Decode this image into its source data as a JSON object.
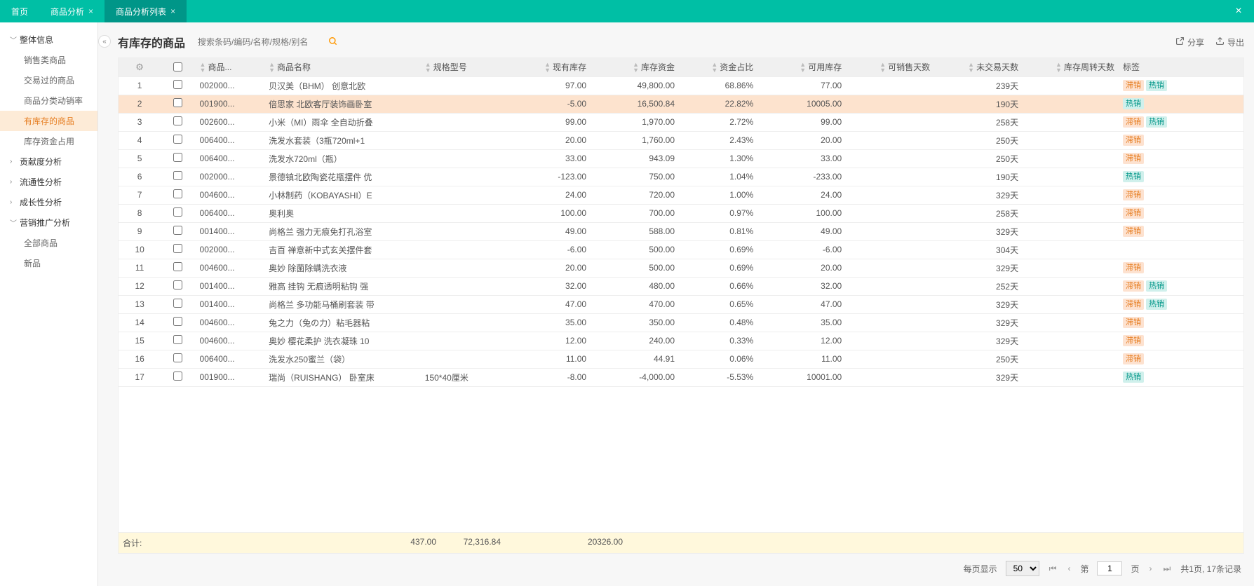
{
  "tabs": [
    {
      "label": "首页",
      "closable": false,
      "active": false
    },
    {
      "label": "商品分析",
      "closable": true,
      "active": false
    },
    {
      "label": "商品分析列表",
      "closable": true,
      "active": true
    }
  ],
  "sidebar": {
    "groups": [
      {
        "label": "整体信息",
        "expanded": true,
        "items": [
          {
            "label": "销售类商品",
            "active": false
          },
          {
            "label": "交易过的商品",
            "active": false
          },
          {
            "label": "商品分类动销率",
            "active": false
          },
          {
            "label": "有库存的商品",
            "active": true
          },
          {
            "label": "库存资金占用",
            "active": false
          }
        ]
      },
      {
        "label": "贡献度分析",
        "expanded": false,
        "items": []
      },
      {
        "label": "流通性分析",
        "expanded": false,
        "items": []
      },
      {
        "label": "成长性分析",
        "expanded": false,
        "items": []
      },
      {
        "label": "营销推广分析",
        "expanded": true,
        "items": [
          {
            "label": "全部商品",
            "active": false
          },
          {
            "label": "新品",
            "active": false
          }
        ]
      }
    ]
  },
  "header": {
    "title": "有库存的商品",
    "search_placeholder": "搜索条码/编码/名称/规格/别名",
    "share": "分享",
    "export": "导出"
  },
  "columns": [
    {
      "key": "idx",
      "label": "",
      "cls": "c-idx ctr",
      "sort": false,
      "gear": true
    },
    {
      "key": "chk",
      "label": "",
      "cls": "c-chk ctr",
      "sort": false,
      "checkbox": true
    },
    {
      "key": "code",
      "label": "商品...",
      "cls": "c-code lft",
      "sort": true
    },
    {
      "key": "name",
      "label": "商品名称",
      "cls": "c-name lft",
      "sort": true
    },
    {
      "key": "spec",
      "label": "规格型号",
      "cls": "c-spec lft",
      "sort": true
    },
    {
      "key": "stock",
      "label": "现有库存",
      "cls": "c-stk num",
      "sort": true
    },
    {
      "key": "fund",
      "label": "库存资金",
      "cls": "c-fund num",
      "sort": true
    },
    {
      "key": "pct",
      "label": "资金占比",
      "cls": "c-pct num",
      "sort": true
    },
    {
      "key": "avail",
      "label": "可用库存",
      "cls": "c-avail num",
      "sort": true
    },
    {
      "key": "sdays",
      "label": "可销售天数",
      "cls": "c-sdays num",
      "sort": true
    },
    {
      "key": "nodays",
      "label": "未交易天数",
      "cls": "c-nodays num",
      "sort": true
    },
    {
      "key": "turn",
      "label": "库存周转天数",
      "cls": "c-turn num",
      "sort": true
    },
    {
      "key": "tags",
      "label": "标签",
      "cls": "c-tags lft",
      "sort": false
    }
  ],
  "tag_labels": {
    "slow": "滞销",
    "hot": "热销"
  },
  "rows": [
    {
      "idx": 1,
      "code": "002000...",
      "name": "贝汉美（BHM） 创意北欧",
      "spec": "",
      "stock": "97.00",
      "fund": "49,800.00",
      "pct": "68.86%",
      "avail": "77.00",
      "sdays": "",
      "nodays": "239天",
      "turn": "",
      "tags": [
        "slow",
        "hot"
      ],
      "hl": false
    },
    {
      "idx": 2,
      "code": "001900...",
      "name": "倍思家 北欧客厅装饰画卧室",
      "spec": "",
      "stock": "-5.00",
      "fund": "16,500.84",
      "pct": "22.82%",
      "avail": "10005.00",
      "sdays": "",
      "nodays": "190天",
      "turn": "",
      "tags": [
        "hot"
      ],
      "hl": true
    },
    {
      "idx": 3,
      "code": "002600...",
      "name": "小米（MI）雨伞 全自动折叠",
      "spec": "",
      "stock": "99.00",
      "fund": "1,970.00",
      "pct": "2.72%",
      "avail": "99.00",
      "sdays": "",
      "nodays": "258天",
      "turn": "",
      "tags": [
        "slow",
        "hot"
      ],
      "hl": false
    },
    {
      "idx": 4,
      "code": "006400...",
      "name": "洗发水套装（3瓶720ml+1",
      "spec": "",
      "stock": "20.00",
      "fund": "1,760.00",
      "pct": "2.43%",
      "avail": "20.00",
      "sdays": "",
      "nodays": "250天",
      "turn": "",
      "tags": [
        "slow"
      ],
      "hl": false
    },
    {
      "idx": 5,
      "code": "006400...",
      "name": "洗发水720ml（瓶）",
      "spec": "",
      "stock": "33.00",
      "fund": "943.09",
      "pct": "1.30%",
      "avail": "33.00",
      "sdays": "",
      "nodays": "250天",
      "turn": "",
      "tags": [
        "slow"
      ],
      "hl": false
    },
    {
      "idx": 6,
      "code": "002000...",
      "name": "景德镇北欧陶瓷花瓶摆件 优",
      "spec": "",
      "stock": "-123.00",
      "fund": "750.00",
      "pct": "1.04%",
      "avail": "-233.00",
      "sdays": "",
      "nodays": "190天",
      "turn": "",
      "tags": [
        "hot"
      ],
      "hl": false
    },
    {
      "idx": 7,
      "code": "004600...",
      "name": "小林制药（KOBAYASHI）E",
      "spec": "",
      "stock": "24.00",
      "fund": "720.00",
      "pct": "1.00%",
      "avail": "24.00",
      "sdays": "",
      "nodays": "329天",
      "turn": "",
      "tags": [
        "slow"
      ],
      "hl": false
    },
    {
      "idx": 8,
      "code": "006400...",
      "name": "奥利奥",
      "spec": "",
      "stock": "100.00",
      "fund": "700.00",
      "pct": "0.97%",
      "avail": "100.00",
      "sdays": "",
      "nodays": "258天",
      "turn": "",
      "tags": [
        "slow"
      ],
      "hl": false
    },
    {
      "idx": 9,
      "code": "001400...",
      "name": "尚格兰 强力无痕免打孔浴室",
      "spec": "",
      "stock": "49.00",
      "fund": "588.00",
      "pct": "0.81%",
      "avail": "49.00",
      "sdays": "",
      "nodays": "329天",
      "turn": "",
      "tags": [
        "slow"
      ],
      "hl": false
    },
    {
      "idx": 10,
      "code": "002000...",
      "name": "吉百 禅意新中式玄关摆件套",
      "spec": "",
      "stock": "-6.00",
      "fund": "500.00",
      "pct": "0.69%",
      "avail": "-6.00",
      "sdays": "",
      "nodays": "304天",
      "turn": "",
      "tags": [],
      "hl": false
    },
    {
      "idx": 11,
      "code": "004600...",
      "name": "奥妙 除菌除螨洗衣液",
      "spec": "",
      "stock": "20.00",
      "fund": "500.00",
      "pct": "0.69%",
      "avail": "20.00",
      "sdays": "",
      "nodays": "329天",
      "turn": "",
      "tags": [
        "slow"
      ],
      "hl": false
    },
    {
      "idx": 12,
      "code": "001400...",
      "name": "雅高 挂钩 无痕透明粘钩 强",
      "spec": "",
      "stock": "32.00",
      "fund": "480.00",
      "pct": "0.66%",
      "avail": "32.00",
      "sdays": "",
      "nodays": "252天",
      "turn": "",
      "tags": [
        "slow",
        "hot"
      ],
      "hl": false
    },
    {
      "idx": 13,
      "code": "001400...",
      "name": "尚格兰 多功能马桶刷套装 带",
      "spec": "",
      "stock": "47.00",
      "fund": "470.00",
      "pct": "0.65%",
      "avail": "47.00",
      "sdays": "",
      "nodays": "329天",
      "turn": "",
      "tags": [
        "slow",
        "hot"
      ],
      "hl": false
    },
    {
      "idx": 14,
      "code": "004600...",
      "name": "兔之力（兔の力）粘毛器粘",
      "spec": "",
      "stock": "35.00",
      "fund": "350.00",
      "pct": "0.48%",
      "avail": "35.00",
      "sdays": "",
      "nodays": "329天",
      "turn": "",
      "tags": [
        "slow"
      ],
      "hl": false
    },
    {
      "idx": 15,
      "code": "004600...",
      "name": "奥妙 樱花柔护 洗衣凝珠 10",
      "spec": "",
      "stock": "12.00",
      "fund": "240.00",
      "pct": "0.33%",
      "avail": "12.00",
      "sdays": "",
      "nodays": "329天",
      "turn": "",
      "tags": [
        "slow"
      ],
      "hl": false
    },
    {
      "idx": 16,
      "code": "006400...",
      "name": "洗发水250蜜兰（袋）",
      "spec": "",
      "stock": "11.00",
      "fund": "44.91",
      "pct": "0.06%",
      "avail": "11.00",
      "sdays": "",
      "nodays": "250天",
      "turn": "",
      "tags": [
        "slow"
      ],
      "hl": false
    },
    {
      "idx": 17,
      "code": "001900...",
      "name": "瑞尚（RUISHANG） 卧室床",
      "spec": "150*40厘米",
      "stock": "-8.00",
      "fund": "-4,000.00",
      "pct": "-5.53%",
      "avail": "10001.00",
      "sdays": "",
      "nodays": "329天",
      "turn": "",
      "tags": [
        "hot"
      ],
      "hl": false
    }
  ],
  "totals": {
    "label": "合计:",
    "stock": "437.00",
    "fund": "72,316.84",
    "avail": "20326.00"
  },
  "pager": {
    "per_page_label": "每页显示",
    "per_page_value": "50",
    "page_prefix": "第",
    "page_value": "1",
    "page_suffix": "页",
    "info": "共1页, 17条记录"
  }
}
